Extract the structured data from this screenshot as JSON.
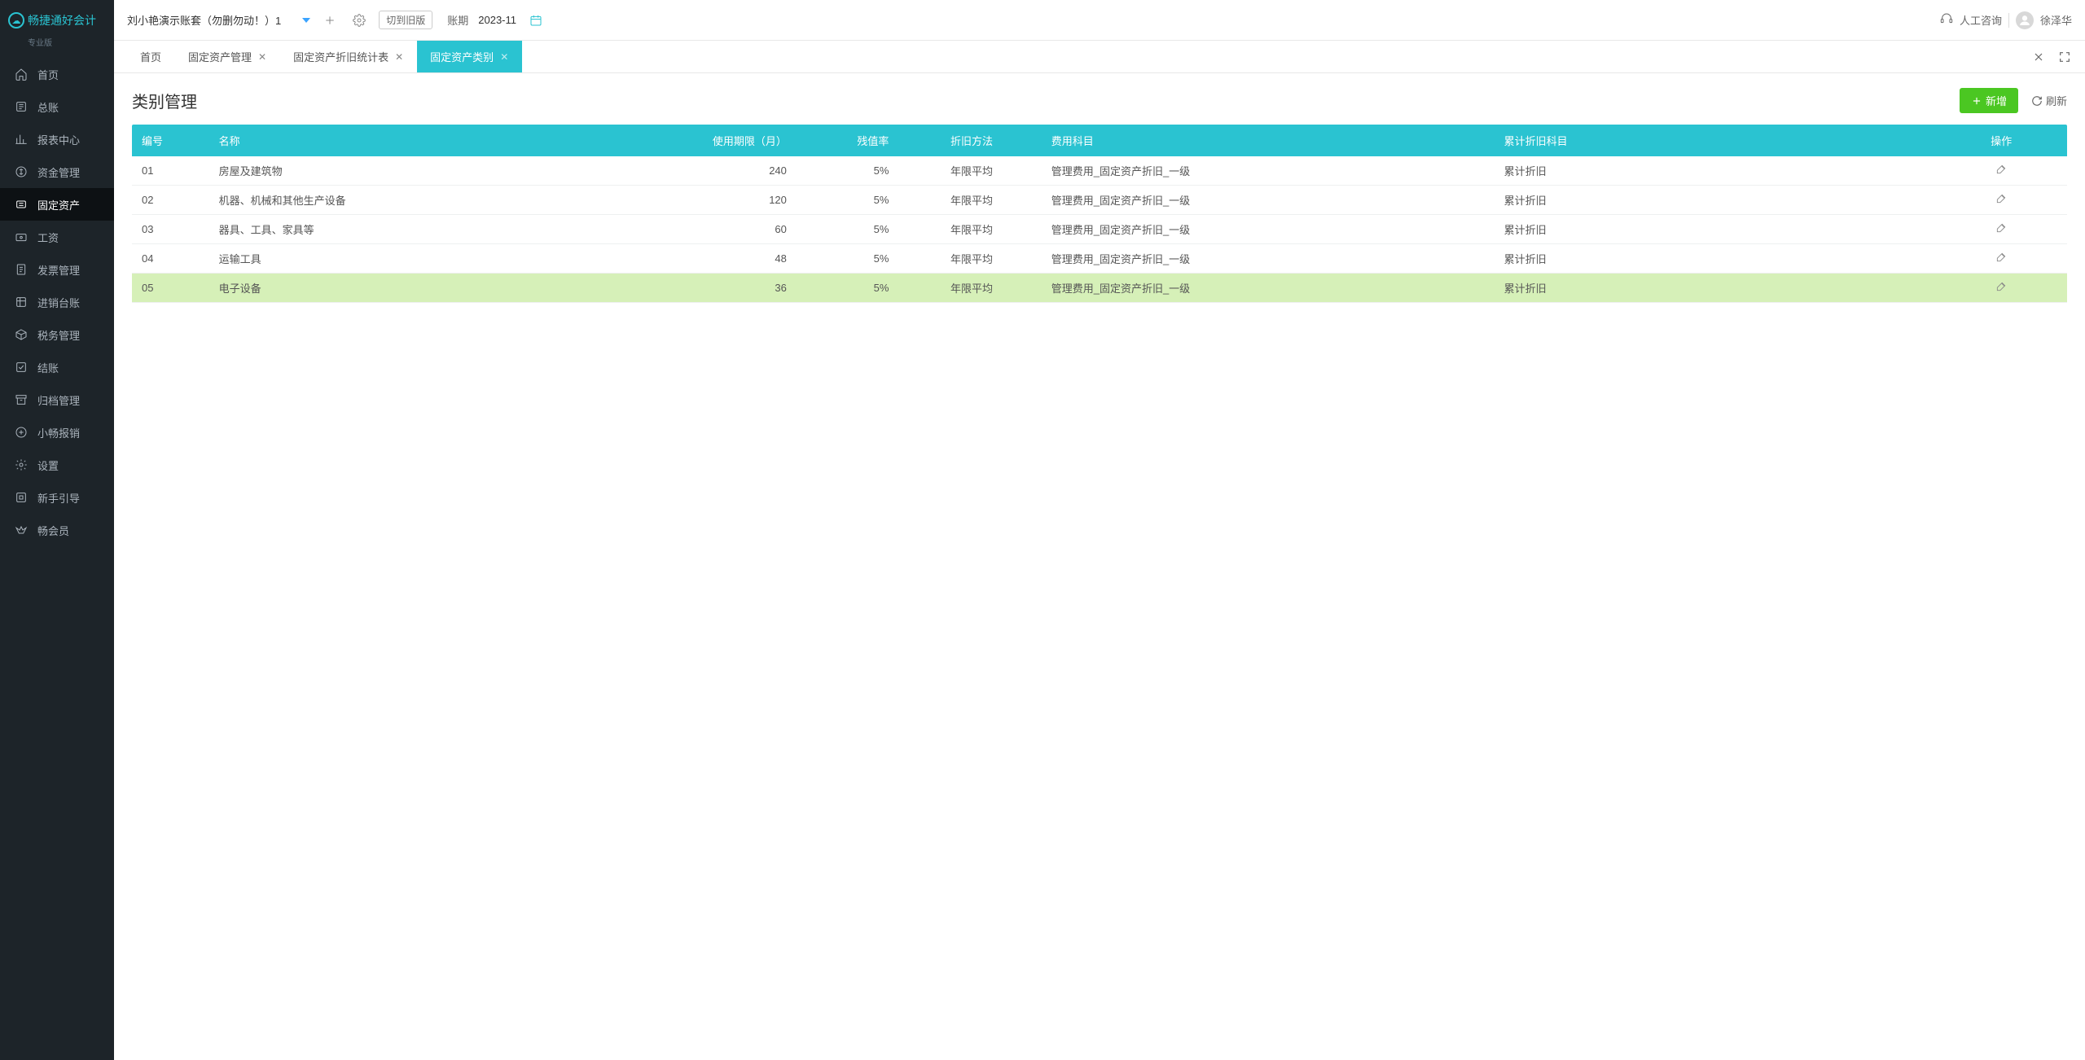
{
  "brand": {
    "name": "畅捷通好会计",
    "sub": "专业版"
  },
  "sidebar": {
    "items": [
      {
        "label": "首页",
        "icon": "home"
      },
      {
        "label": "总账",
        "icon": "ledger"
      },
      {
        "label": "报表中心",
        "icon": "report"
      },
      {
        "label": "资金管理",
        "icon": "money"
      },
      {
        "label": "固定资产",
        "icon": "asset"
      },
      {
        "label": "工资",
        "icon": "salary"
      },
      {
        "label": "发票管理",
        "icon": "invoice"
      },
      {
        "label": "进销台账",
        "icon": "purchase"
      },
      {
        "label": "税务管理",
        "icon": "tax"
      },
      {
        "label": "结账",
        "icon": "close"
      },
      {
        "label": "归档管理",
        "icon": "archive"
      },
      {
        "label": "小畅报销",
        "icon": "reimburse"
      },
      {
        "label": "设置",
        "icon": "settings"
      },
      {
        "label": "新手引导",
        "icon": "guide"
      },
      {
        "label": "畅会员",
        "icon": "vip"
      }
    ],
    "active_index": 4
  },
  "topbar": {
    "account_name": "刘小艳演示账套（勿删勿动！）1",
    "old_version_btn": "切到旧版",
    "period_label": "账期",
    "period_value": "2023-11",
    "consult_label": "人工咨询",
    "user_name": "徐泽华"
  },
  "tabs": {
    "items": [
      {
        "label": "首页",
        "closable": false
      },
      {
        "label": "固定资产管理",
        "closable": true
      },
      {
        "label": "固定资产折旧统计表",
        "closable": true
      },
      {
        "label": "固定资产类别",
        "closable": true
      }
    ],
    "active_index": 3
  },
  "page": {
    "title": "类别管理",
    "add_btn": "新增",
    "refresh_btn": "刷新"
  },
  "table": {
    "columns": [
      {
        "key": "id",
        "label": "编号"
      },
      {
        "key": "name",
        "label": "名称"
      },
      {
        "key": "months",
        "label": "使用期限（月）"
      },
      {
        "key": "rate",
        "label": "残值率"
      },
      {
        "key": "method",
        "label": "折旧方法"
      },
      {
        "key": "subject",
        "label": "费用科目"
      },
      {
        "key": "accum",
        "label": "累计折旧科目"
      },
      {
        "key": "actions",
        "label": "操作"
      }
    ],
    "rows": [
      {
        "id": "01",
        "name": "房屋及建筑物",
        "months": "240",
        "rate": "5%",
        "method": "年限平均",
        "subject": "管理费用_固定资产折旧_一级",
        "accum": "累计折旧"
      },
      {
        "id": "02",
        "name": "机器、机械和其他生产设备",
        "months": "120",
        "rate": "5%",
        "method": "年限平均",
        "subject": "管理费用_固定资产折旧_一级",
        "accum": "累计折旧"
      },
      {
        "id": "03",
        "name": "器具、工具、家具等",
        "months": "60",
        "rate": "5%",
        "method": "年限平均",
        "subject": "管理费用_固定资产折旧_一级",
        "accum": "累计折旧"
      },
      {
        "id": "04",
        "name": "运输工具",
        "months": "48",
        "rate": "5%",
        "method": "年限平均",
        "subject": "管理费用_固定资产折旧_一级",
        "accum": "累计折旧"
      },
      {
        "id": "05",
        "name": "电子设备",
        "months": "36",
        "rate": "5%",
        "method": "年限平均",
        "subject": "管理费用_固定资产折旧_一级",
        "accum": "累计折旧"
      }
    ],
    "highlight_index": 4
  },
  "colors": {
    "sidebar_bg": "#1d2429",
    "sidebar_active_bg": "#0d1114",
    "accent_teal": "#2ac3d1",
    "green": "#4bc722",
    "row_highlight": "#d6f0b8"
  }
}
